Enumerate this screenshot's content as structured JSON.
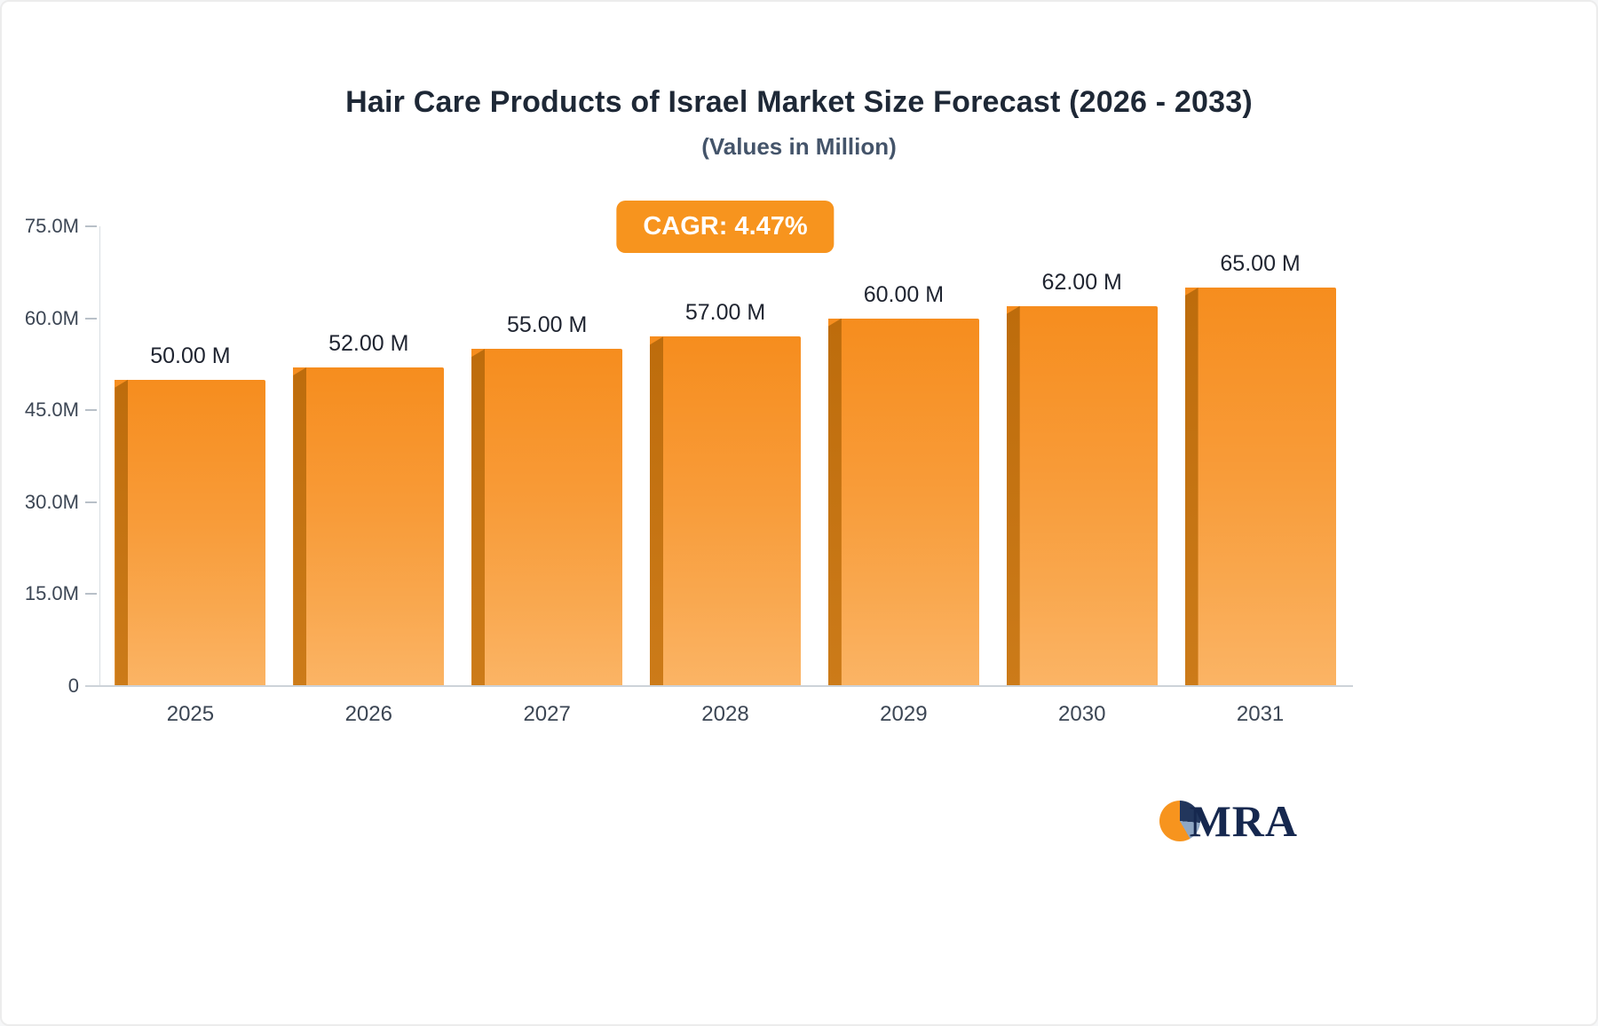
{
  "chart": {
    "logo_text": "MRA"
  },
  "chart_data": {
    "type": "bar",
    "title": "Hair Care Products of Israel Market Size Forecast (2026 - 2033)",
    "subtitle": "(Values in Million)",
    "cagr_label": "CAGR: 4.47%",
    "categories": [
      "2025",
      "2026",
      "2027",
      "2028",
      "2029",
      "2030",
      "2031"
    ],
    "values": [
      50,
      52,
      55,
      57,
      60,
      62,
      65
    ],
    "value_labels": [
      "50.00 M",
      "52.00 M",
      "55.00 M",
      "57.00 M",
      "60.00 M",
      "62.00 M",
      "65.00 M"
    ],
    "xlabel": "",
    "ylabel": "",
    "ylim": [
      0,
      75
    ],
    "yticks": [
      {
        "value": 75,
        "label": "75.0M"
      },
      {
        "value": 60,
        "label": "60.0M"
      },
      {
        "value": 45,
        "label": "45.0M"
      },
      {
        "value": 30,
        "label": "30.0M"
      },
      {
        "value": 15,
        "label": "15.0M"
      },
      {
        "value": 0,
        "label": "0"
      }
    ],
    "grid": false,
    "legend": "none",
    "bar_color": "#F7941E",
    "bar_side_color": "#BD6C0C",
    "accent_color": "#F7941E",
    "text_color": "#1E2836"
  }
}
